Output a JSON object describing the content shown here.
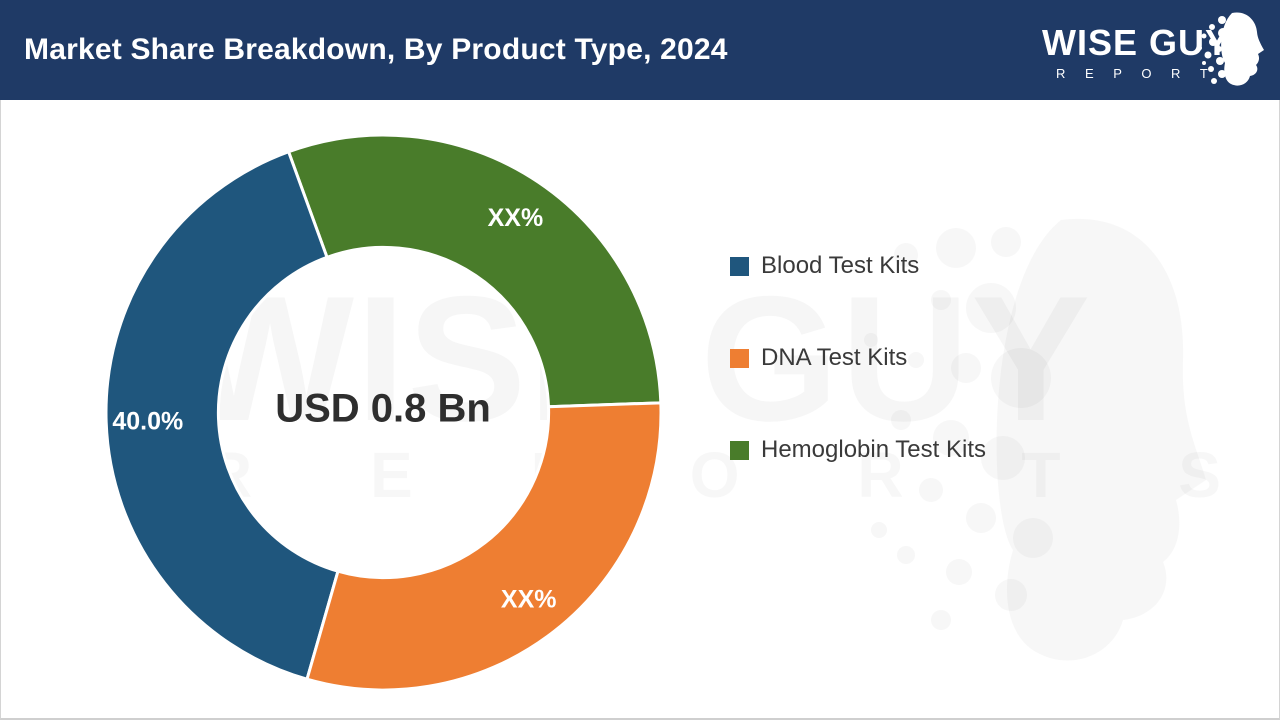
{
  "header": {
    "title": "Market Share Breakdown, By Product Type, 2024",
    "logo_line1": "WISE GUY",
    "logo_line2": "R E P O R T S",
    "bg_color": "#1f3a66"
  },
  "watermark": {
    "line1": "WISE GUY",
    "line2": "R E P O R T S"
  },
  "chart_data": {
    "type": "pie",
    "subtype": "donut",
    "title": "Market Share Breakdown, By Product Type, 2024",
    "center_text": "USD 0.8 Bn",
    "start_angle_deg": 2,
    "direction": "counterclockwise",
    "inner_radius_ratio": 0.595,
    "legend_position": "right",
    "segments": [
      {
        "id": "blood",
        "label": "Blood Test Kits",
        "display_pct": "40.0%",
        "value_pct": 40,
        "color": "#1f567d"
      },
      {
        "id": "dna",
        "label": "DNA Test Kits",
        "display_pct": "XX%",
        "value_pct": 30,
        "color": "#ee7e32"
      },
      {
        "id": "hemoglobin",
        "label": "Hemoglobin Test Kits",
        "display_pct": "XX%",
        "value_pct": 30,
        "color": "#497c2a"
      }
    ],
    "draw_order": [
      2,
      0,
      1
    ]
  }
}
